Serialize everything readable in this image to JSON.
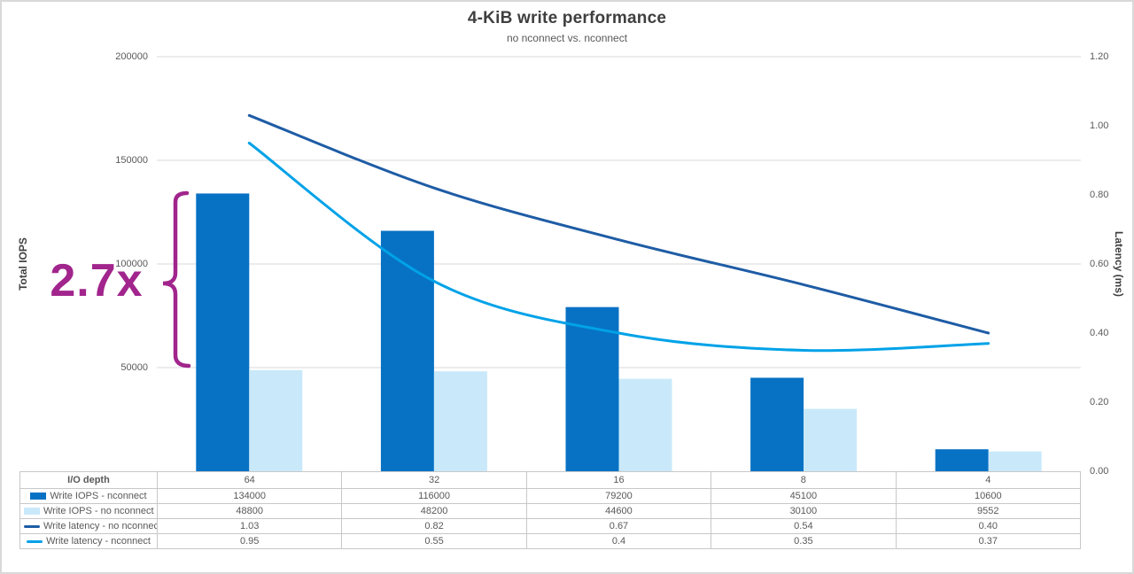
{
  "title": "4-KiB write performance",
  "subtitle": "no nconnect vs. nconnect",
  "annotation": {
    "label": "2.7x",
    "color": "#A1258C"
  },
  "left_axis": {
    "title": "Total IOPS",
    "ticks": [
      "200000",
      "150000",
      "100000",
      "50000"
    ],
    "max": 200000
  },
  "right_axis": {
    "title": "Latency (ms)",
    "ticks": [
      "1.20",
      "1.00",
      "0.80",
      "0.60",
      "0.40",
      "0.20",
      "0.00"
    ],
    "max": 1.2
  },
  "x_axis": {
    "title": "I/O depth",
    "categories": [
      "64",
      "32",
      "16",
      "8",
      "4"
    ]
  },
  "colors": {
    "grid": "#d9d9d9"
  },
  "chart_data": {
    "type": "combo",
    "title": "4-KiB write performance",
    "subtitle": "no nconnect vs. nconnect",
    "xlabel": "I/O depth",
    "ylabel": "Total IOPS",
    "y2label": "Latency (ms)",
    "ylim": [
      0,
      200000
    ],
    "y2lim": [
      0,
      1.2
    ],
    "grid": true,
    "legend_position": "table-left",
    "categories": [
      "64",
      "32",
      "16",
      "8",
      "4"
    ],
    "series": [
      {
        "name": "Write IOPS - nconnect",
        "type": "bar",
        "axis": "left",
        "color": "#0772C4",
        "values": [
          134000,
          116000,
          79200,
          45100,
          10600
        ],
        "display": [
          "134000",
          "116000",
          "79200",
          "45100",
          "10600"
        ]
      },
      {
        "name": "Write IOPS - no nconnect",
        "type": "bar",
        "axis": "left",
        "color": "#C9E9FA",
        "values": [
          48800,
          48200,
          44600,
          30100,
          9552
        ],
        "display": [
          "48800",
          "48200",
          "44600",
          "30100",
          "9552"
        ]
      },
      {
        "name": "Write latency - no nconnect",
        "type": "line",
        "axis": "right",
        "color": "#1E5CA5",
        "values": [
          1.03,
          0.82,
          0.67,
          0.54,
          0.4
        ],
        "display": [
          "1.03",
          "0.82",
          "0.67",
          "0.54",
          "0.40"
        ]
      },
      {
        "name": "Write latency - nconnect",
        "type": "line",
        "axis": "right",
        "color": "#00A2E8",
        "values": [
          0.95,
          0.55,
          0.4,
          0.35,
          0.37
        ],
        "display": [
          "0.95",
          "0.55",
          "0.4",
          "0.35",
          "0.37"
        ]
      }
    ]
  }
}
